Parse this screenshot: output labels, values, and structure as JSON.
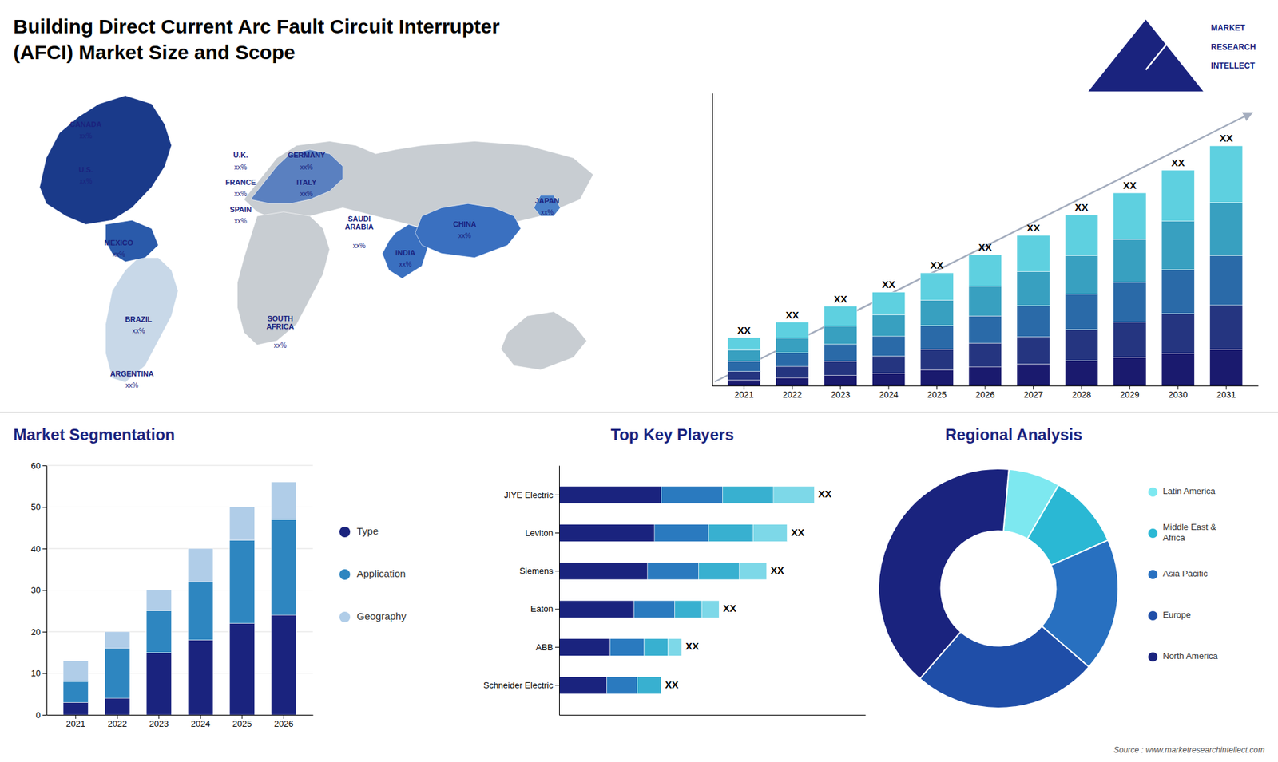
{
  "title": "Building Direct Current Arc Fault Circuit Interrupter\n(AFCI) Market Size and Scope",
  "annotations": [
    "MARKET",
    "RESEARCH",
    "INTELLECT",
    "Source : www.marketresearchintellect.com"
  ],
  "chart_data": [
    {
      "type": "map",
      "categories": [
        "CANADA",
        "U.S.",
        "MEXICO",
        "BRAZIL",
        "ARGENTINA",
        "U.K.",
        "FRANCE",
        "SPAIN",
        "GERMANY",
        "ITALY",
        "SAUDI\nARABIA",
        "SOUTH\nAFRICA",
        "CHINA",
        "INDIA",
        "JAPAN"
      ],
      "annotations": [
        "xx%",
        "xx%",
        "xx%",
        "xx%",
        "xx%",
        "xx%",
        "xx%",
        "xx%",
        "xx%",
        "xx%",
        "xx%",
        "xx%",
        "xx%",
        "xx%",
        "xx%"
      ]
    },
    {
      "type": "bar",
      "stacked": true,
      "categories": [
        "2021",
        "2022",
        "2023",
        "2024",
        "2025",
        "2026",
        "2027",
        "2028",
        "2029",
        "2030",
        "2031"
      ],
      "series": [
        {
          "color": "#1a1a6e",
          "values": [
            1.0,
            1.4,
            1.8,
            2.2,
            2.8,
            3.3,
            3.8,
            4.4,
            5.0,
            5.7,
            6.4
          ]
        },
        {
          "color": "#253580",
          "values": [
            1.5,
            2.0,
            2.5,
            3.0,
            3.6,
            4.2,
            4.8,
            5.5,
            6.2,
            7.0,
            7.8
          ]
        },
        {
          "color": "#2a6aa8",
          "values": [
            1.8,
            2.4,
            3.0,
            3.5,
            4.2,
            4.8,
            5.5,
            6.2,
            7.0,
            7.8,
            8.7
          ]
        },
        {
          "color": "#38a0c0",
          "values": [
            2.0,
            2.6,
            3.2,
            3.8,
            4.5,
            5.2,
            6.0,
            6.8,
            7.6,
            8.5,
            9.4
          ]
        },
        {
          "color": "#5ed0e0",
          "values": [
            2.2,
            2.8,
            3.5,
            4.0,
            4.8,
            5.6,
            6.4,
            7.2,
            8.2,
            9.0,
            10.0
          ]
        }
      ],
      "annotations": [
        "XX",
        "XX",
        "XX",
        "XX",
        "XX",
        "XX",
        "XX",
        "XX",
        "XX",
        "XX",
        "XX"
      ],
      "ylim": [
        0,
        51.606
      ],
      "tick_labels": "x",
      "grid": false
    },
    {
      "type": "bar",
      "stacked": true,
      "title": "Market Segmentation",
      "categories": [
        "2021",
        "2022",
        "2023",
        "2024",
        "2025",
        "2026"
      ],
      "series": [
        {
          "name": "Type",
          "color": "#1a237e",
          "values": [
            3,
            4,
            15,
            18,
            22,
            24
          ]
        },
        {
          "name": "Application",
          "color": "#2e86c0",
          "values": [
            5,
            12,
            10,
            14,
            20,
            23
          ]
        },
        {
          "name": "Geography",
          "color": "#b0cde8",
          "values": [
            5,
            4,
            5,
            8,
            8,
            9
          ]
        }
      ],
      "ylim": [
        0,
        60
      ],
      "yticks": [
        0,
        10,
        20,
        30,
        40,
        50,
        60
      ],
      "grid": true,
      "legend": "right"
    },
    {
      "type": "bar",
      "stacked": true,
      "orientation": "horizontal",
      "title": "Top Key Players",
      "categories": [
        "JIYE Electric",
        "Leviton",
        "Siemens",
        "Eaton",
        "ABB",
        "Schneider Electric"
      ],
      "series": [
        {
          "color": "#1a237e",
          "values": [
            0.3,
            0.28,
            0.26,
            0.22,
            0.15,
            0.14
          ]
        },
        {
          "color": "#2a7abf",
          "values": [
            0.18,
            0.16,
            0.15,
            0.12,
            0.1,
            0.09
          ]
        },
        {
          "color": "#38b0d0",
          "values": [
            0.15,
            0.13,
            0.12,
            0.08,
            0.07,
            0.07
          ]
        },
        {
          "color": "#7dd8e8",
          "values": [
            0.12,
            0.1,
            0.08,
            0.05,
            0.04,
            0.0
          ]
        }
      ],
      "annotations": [
        "XX",
        "XX",
        "XX",
        "XX",
        "XX",
        "XX"
      ],
      "xlim": [
        0,
        0.9
      ],
      "tick_labels": "y",
      "grid": false
    },
    {
      "type": "donut",
      "title": "Regional Analysis",
      "categories": [
        "Latin America",
        "Middle East &\nAfrica",
        "Asia Pacific",
        "Europe",
        "North America"
      ],
      "values": [
        7,
        10,
        18,
        25,
        40
      ],
      "colors": [
        "#7de8f0",
        "#2ab8d4",
        "#2870c0",
        "#1f4ea8",
        "#1a237e"
      ],
      "legend": "right"
    }
  ]
}
